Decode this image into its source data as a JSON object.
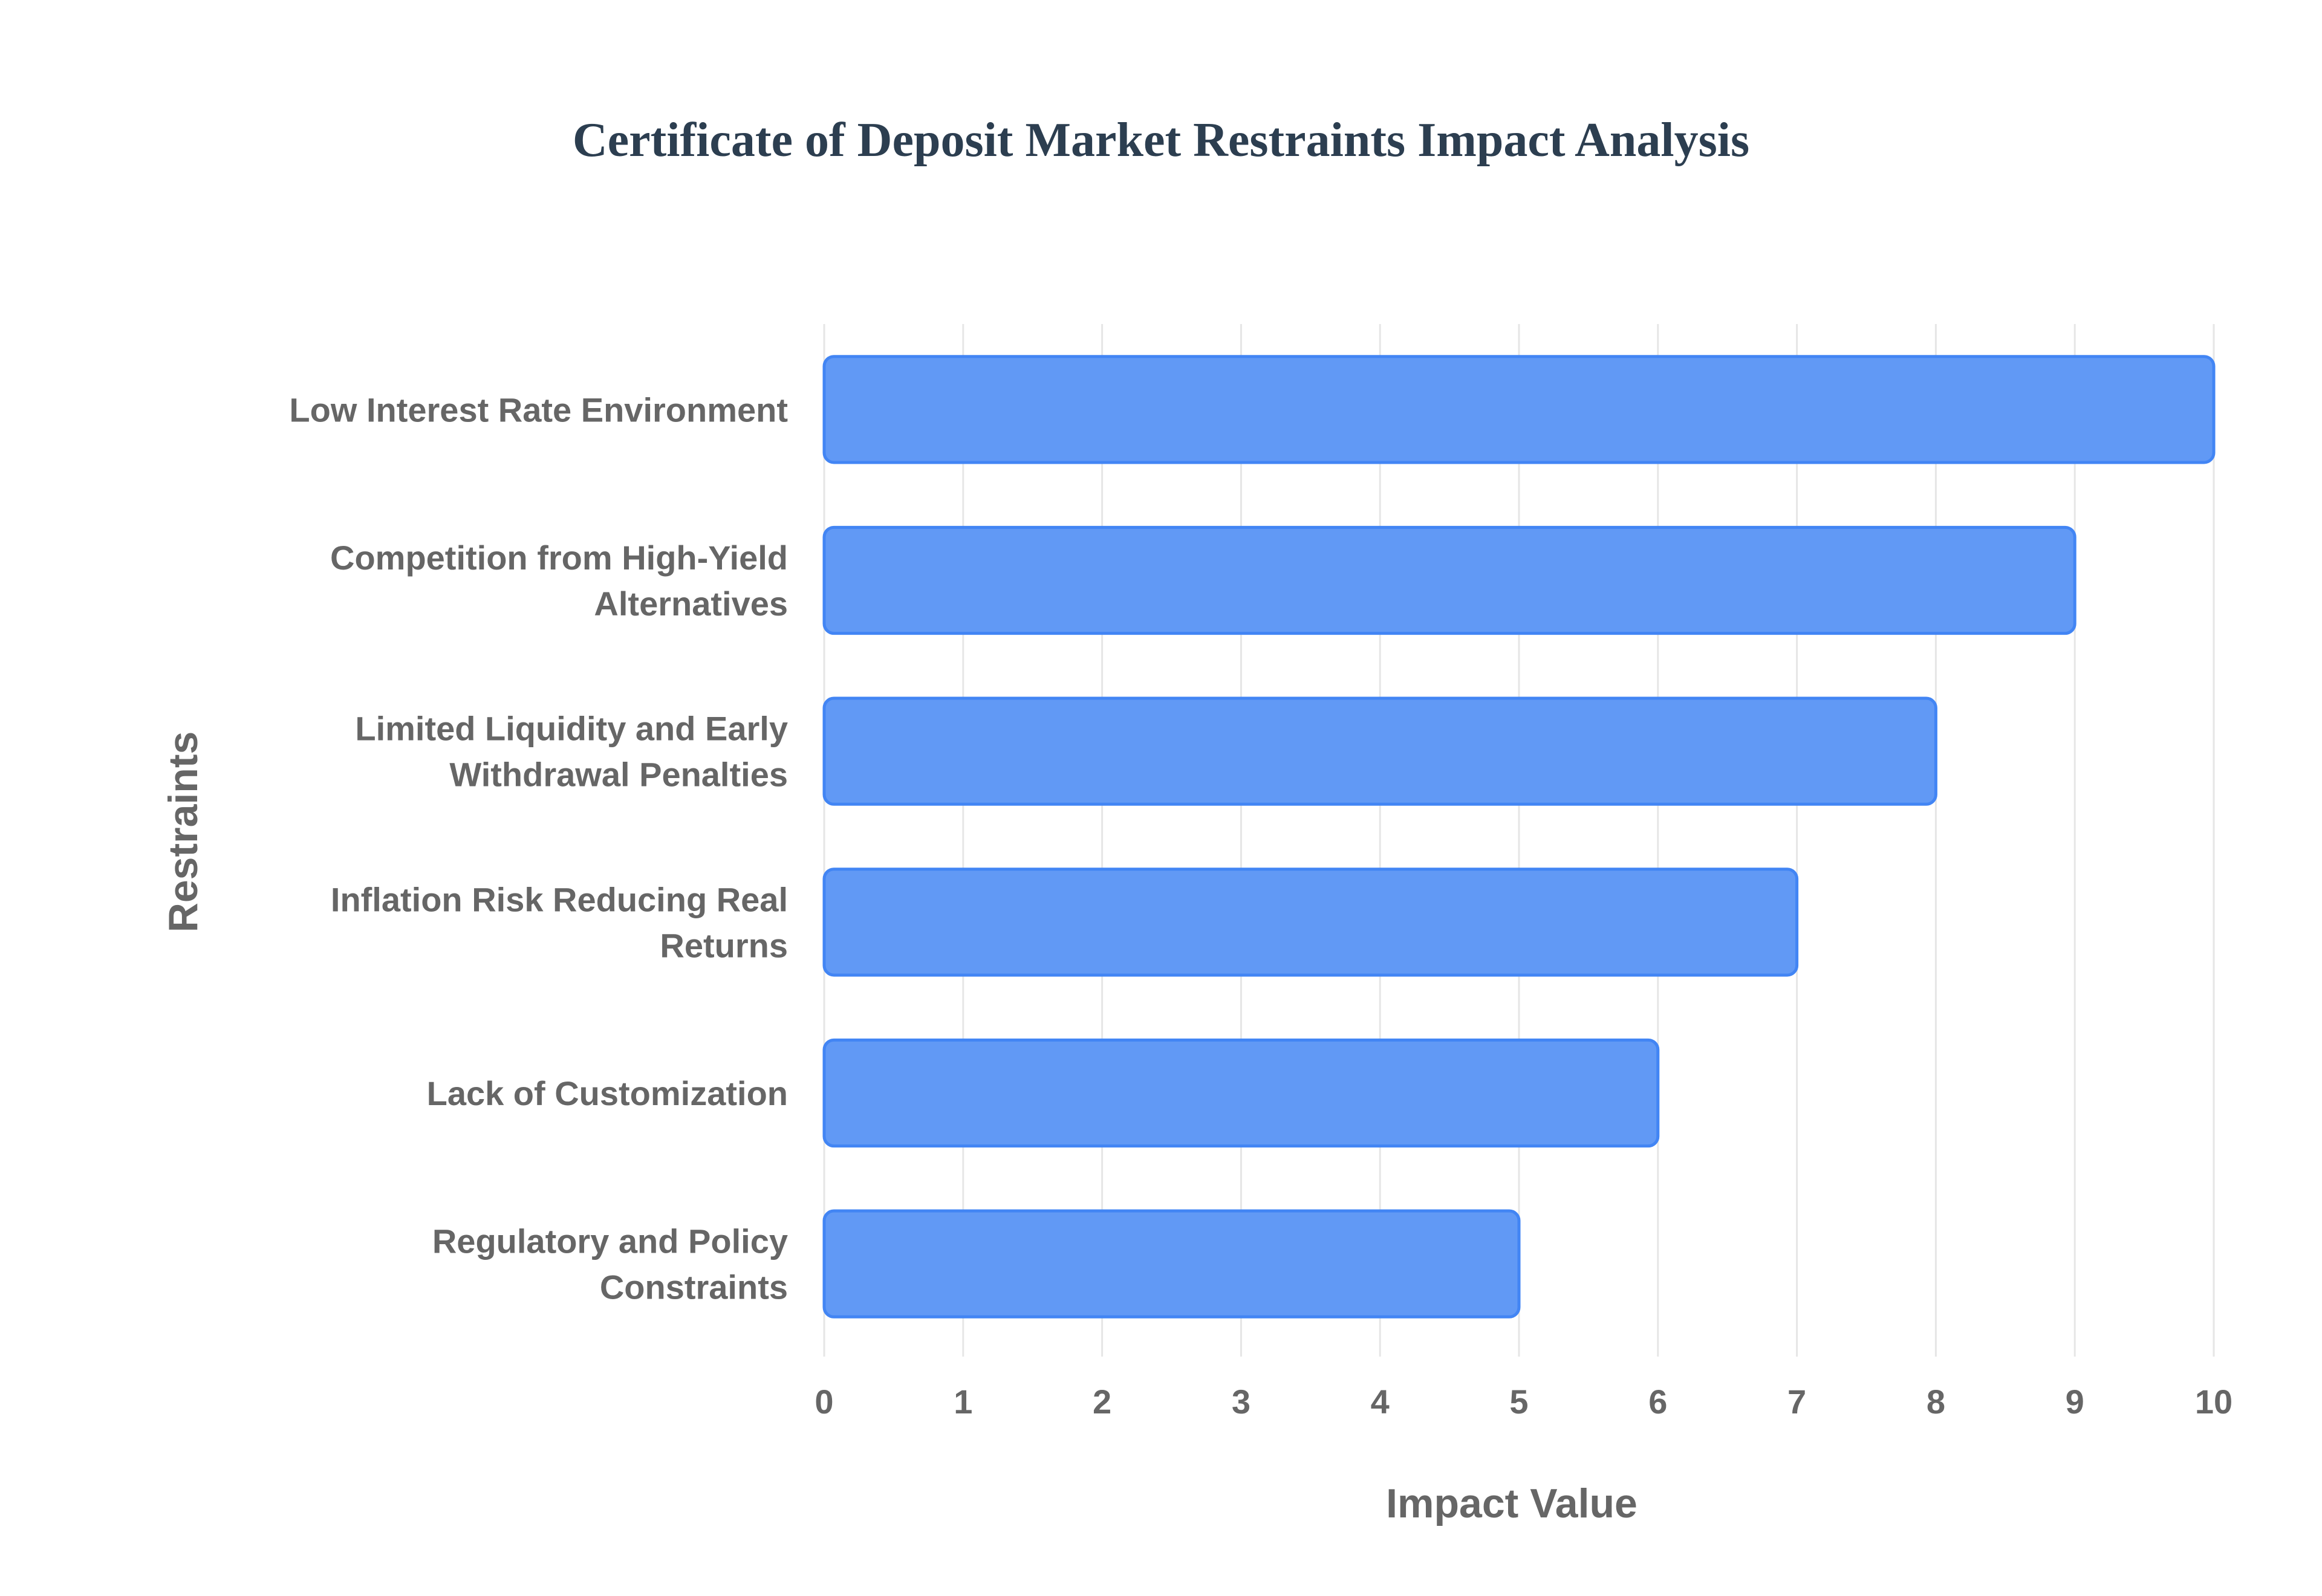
{
  "chart_data": {
    "type": "bar",
    "orientation": "horizontal",
    "title": "Certificate of Deposit Market Restraints Impact Analysis",
    "xlabel": "Impact Value",
    "ylabel": "Restraints",
    "xlim": [
      0,
      10
    ],
    "x_ticks": [
      "0",
      "1",
      "2",
      "3",
      "4",
      "5",
      "6",
      "7",
      "8",
      "9",
      "10"
    ],
    "grid": true,
    "categories": [
      [
        "Low Interest Rate Environment"
      ],
      [
        "Competition from High-Yield",
        "Alternatives"
      ],
      [
        "Limited Liquidity and Early",
        "Withdrawal Penalties"
      ],
      [
        "Inflation Risk Reducing Real",
        "Returns"
      ],
      [
        "Lack of Customization"
      ],
      [
        "Regulatory and Policy",
        "Constraints"
      ]
    ],
    "values": [
      10,
      9,
      8,
      7,
      6,
      5
    ],
    "colors": {
      "bar_fill": "#6199f5",
      "bar_border": "#4285f4",
      "title": "#2c3e50",
      "text": "#666666",
      "grid": "#e6e6e6"
    }
  }
}
